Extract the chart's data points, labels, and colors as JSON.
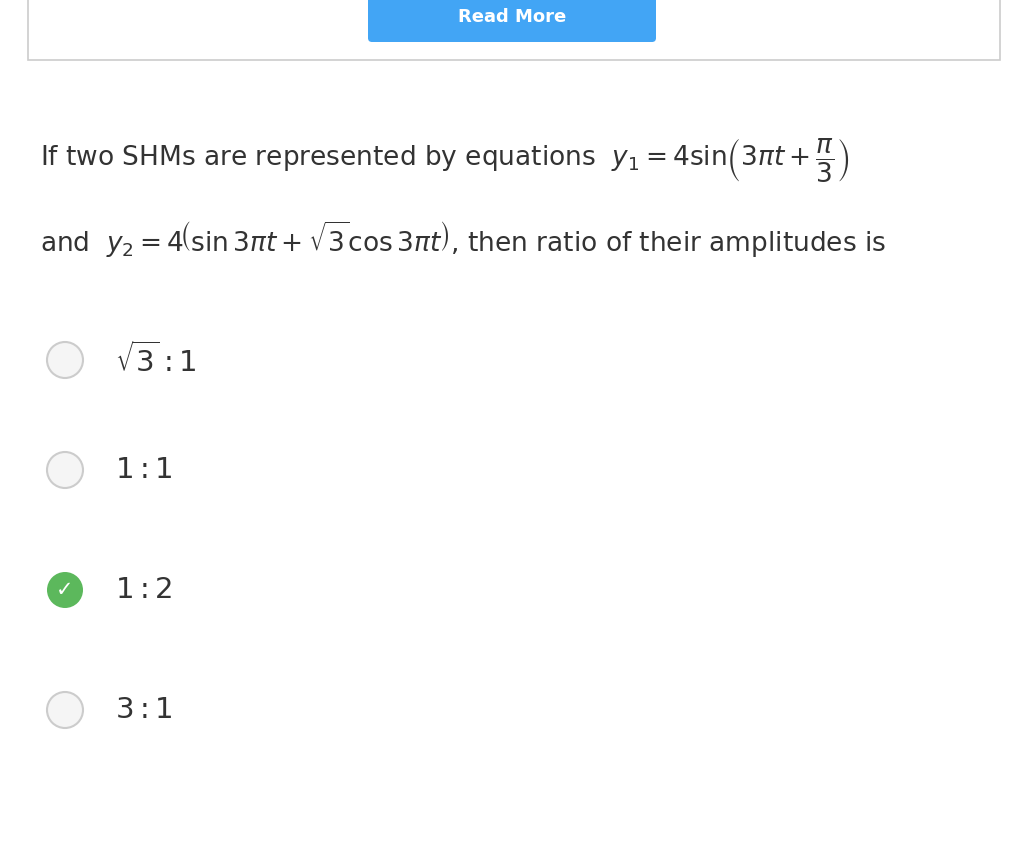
{
  "background_color": "#ffffff",
  "top_bar_color": "#42a5f5",
  "top_bar_text": "Read More",
  "options": [
    {
      "label": "$\\sqrt{3}:1$",
      "correct": false
    },
    {
      "label": "$1:1$",
      "correct": false
    },
    {
      "label": "$1:2$",
      "correct": true
    },
    {
      "label": "$3:1$",
      "correct": false
    }
  ],
  "option_circle_color_selected": "#5cb85c",
  "text_color": "#333333",
  "font_size_question": 19,
  "font_size_option": 21,
  "border_color": "#cccccc"
}
